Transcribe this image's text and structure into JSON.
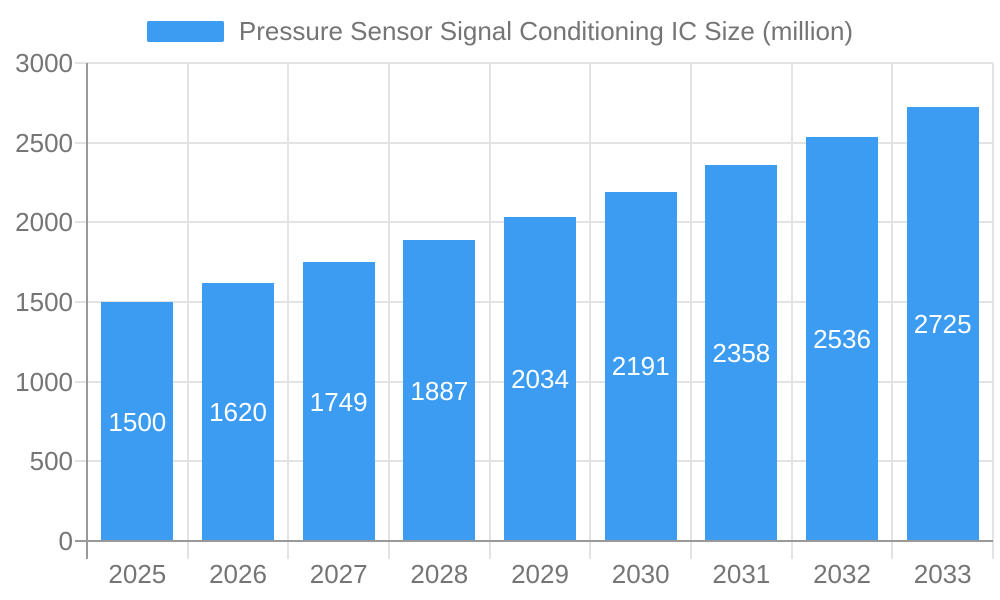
{
  "chart_data": {
    "type": "bar",
    "title": "",
    "legend_label": "Pressure Sensor Signal Conditioning IC Size (million)",
    "legend_position": "top-center",
    "categories": [
      "2025",
      "2026",
      "2027",
      "2028",
      "2029",
      "2030",
      "2031",
      "2032",
      "2033"
    ],
    "values": [
      1500,
      1620,
      1749,
      1887,
      2034,
      2191,
      2358,
      2536,
      2725
    ],
    "xlabel": "",
    "ylabel": "",
    "ylim": [
      0,
      3000
    ],
    "ytick_step": 500,
    "ytick_labels": [
      "0",
      "500",
      "1000",
      "1500",
      "2000",
      "2500",
      "3000"
    ],
    "grid": true,
    "value_labels_inside_bars": true,
    "colors": {
      "bar": "#3B9CF1",
      "axis_line": "#999999",
      "gridline": "#e3e3e3",
      "tick_label": "#757575",
      "legend_text": "#757575",
      "value_label": "#ffffff",
      "background": "#ffffff"
    }
  }
}
